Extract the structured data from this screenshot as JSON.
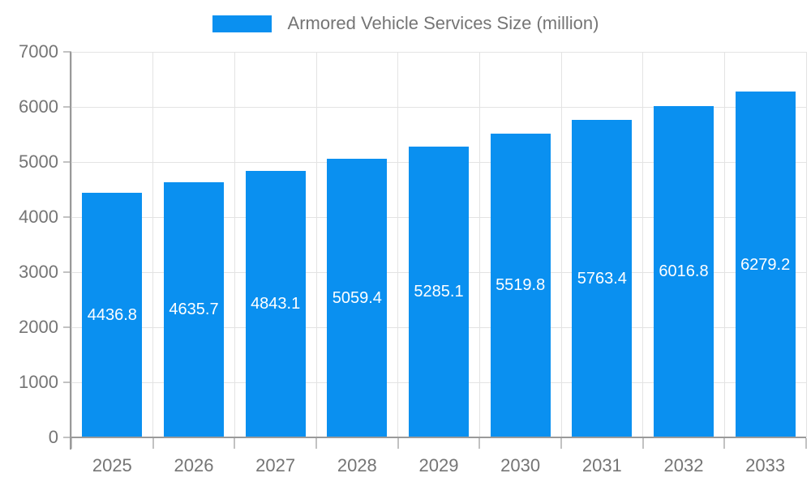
{
  "legend": {
    "label": "Armored Vehicle Services Size (million)"
  },
  "colors": {
    "bar": "#0a90f0",
    "value_label": "#ffffff",
    "axis_label": "#757575",
    "grid": "#e3e3e3",
    "axis_line": "#9a9a9a",
    "tick": "#c2c2c2",
    "background": "#ffffff"
  },
  "chart_data": {
    "type": "bar",
    "title": "Armored Vehicle Services Size (million)",
    "categories": [
      "2025",
      "2026",
      "2027",
      "2028",
      "2029",
      "2030",
      "2031",
      "2032",
      "2033"
    ],
    "values": [
      4436.8,
      4635.7,
      4843.1,
      5059.4,
      5285.1,
      5519.8,
      5763.4,
      6016.8,
      6279.2
    ],
    "series": [
      {
        "name": "Armored Vehicle Services Size (million)",
        "values": [
          4436.8,
          4635.7,
          4843.1,
          5059.4,
          5285.1,
          5519.8,
          5763.4,
          6016.8,
          6279.2
        ]
      }
    ],
    "xlabel": "",
    "ylabel": "",
    "ylim": [
      0,
      7000
    ],
    "y_ticks": [
      0,
      1000,
      2000,
      3000,
      4000,
      5000,
      6000,
      7000
    ],
    "grid": true,
    "legend_position": "top",
    "value_label_position": "inside-center"
  }
}
